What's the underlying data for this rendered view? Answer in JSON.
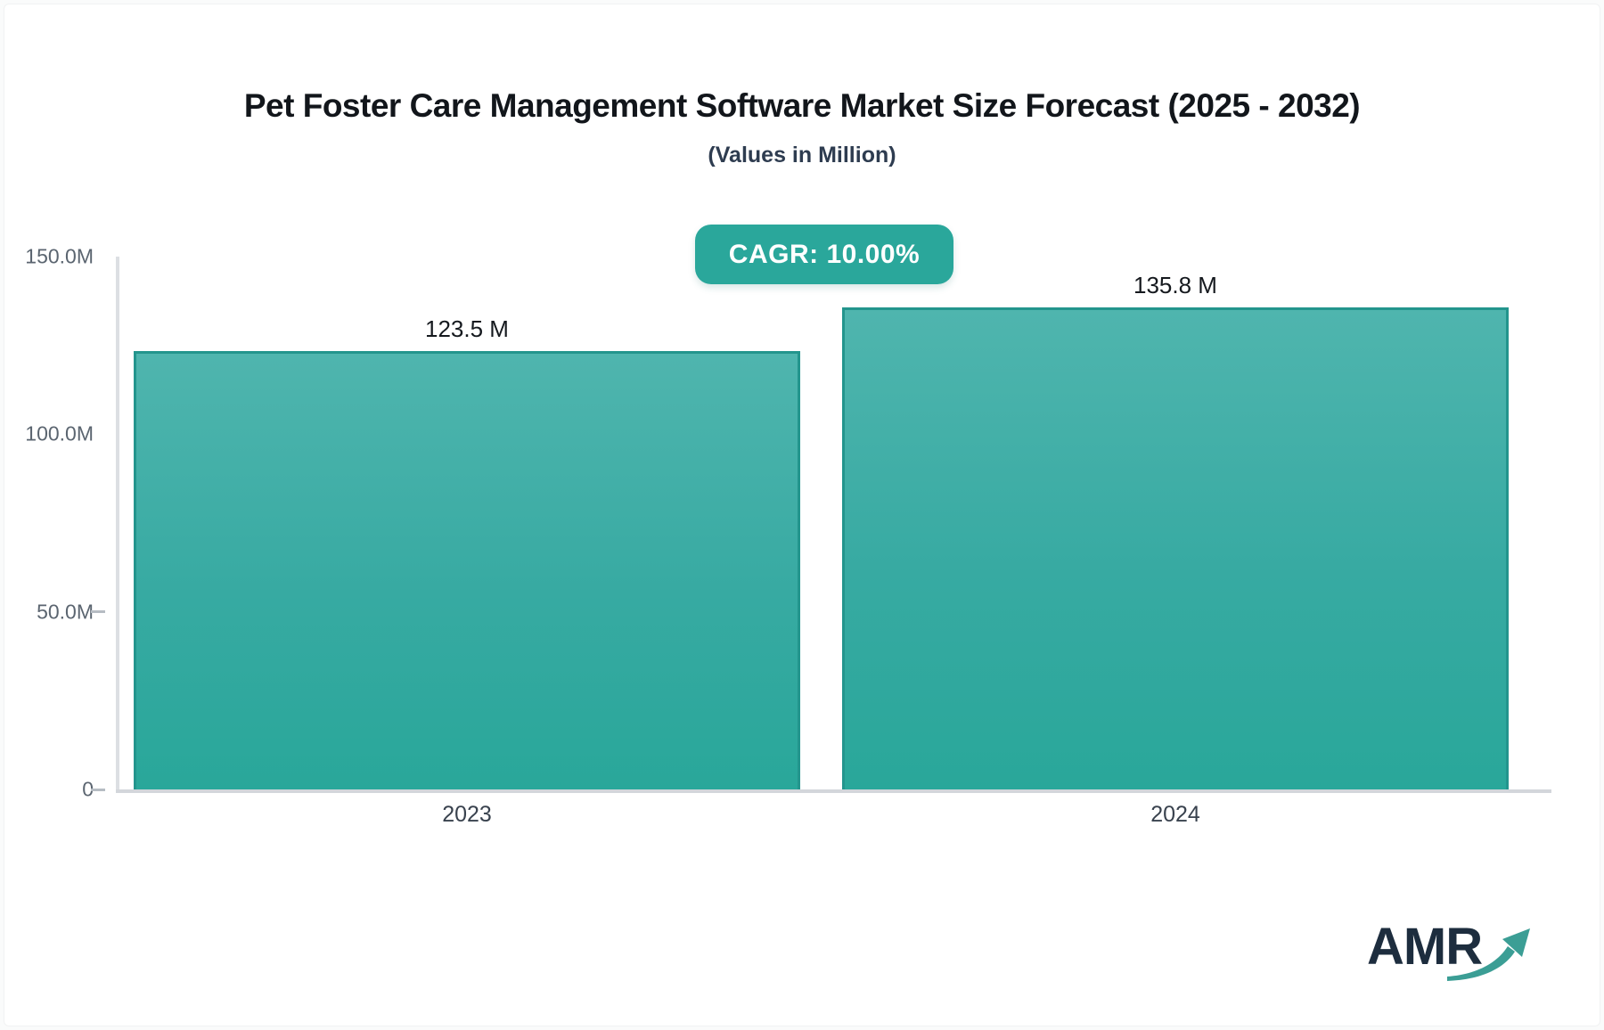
{
  "header": {
    "title": "Pet Foster Care Management Software Market Size Forecast (2025 - 2032)",
    "subtitle": "(Values in Million)"
  },
  "badge": {
    "label": "CAGR: 10.00%",
    "color": "#2aa79b"
  },
  "chart_data": {
    "type": "bar",
    "categories": [
      "2023",
      "2024"
    ],
    "values": [
      123.5,
      135.8
    ],
    "value_labels": [
      "123.5 M",
      "135.8 M"
    ],
    "title": "Pet Foster Care Management Software Market Size Forecast (2025 - 2032)",
    "subtitle": "(Values in Million)",
    "annotation": "CAGR: 10.00%",
    "xlabel": "",
    "ylabel": "",
    "ylim": [
      0,
      150
    ],
    "yticks": [
      {
        "value": 150,
        "label": "150.0M"
      },
      {
        "value": 100,
        "label": "100.0M"
      },
      {
        "value": 50,
        "label": "50.0M"
      },
      {
        "value": 0,
        "label": "0"
      }
    ],
    "dash_ticks": [
      50,
      0
    ],
    "grid": "off",
    "legend": "none",
    "bar_color_top": "#4fb5ae",
    "bar_color_bottom": "#29a79a",
    "bar_border_color": "#23958d"
  },
  "logo": {
    "text": "AMR",
    "text_color": "#1d2d3e",
    "arrow_color": "#3b9e95",
    "arrow_icon": "growth-arrow"
  }
}
